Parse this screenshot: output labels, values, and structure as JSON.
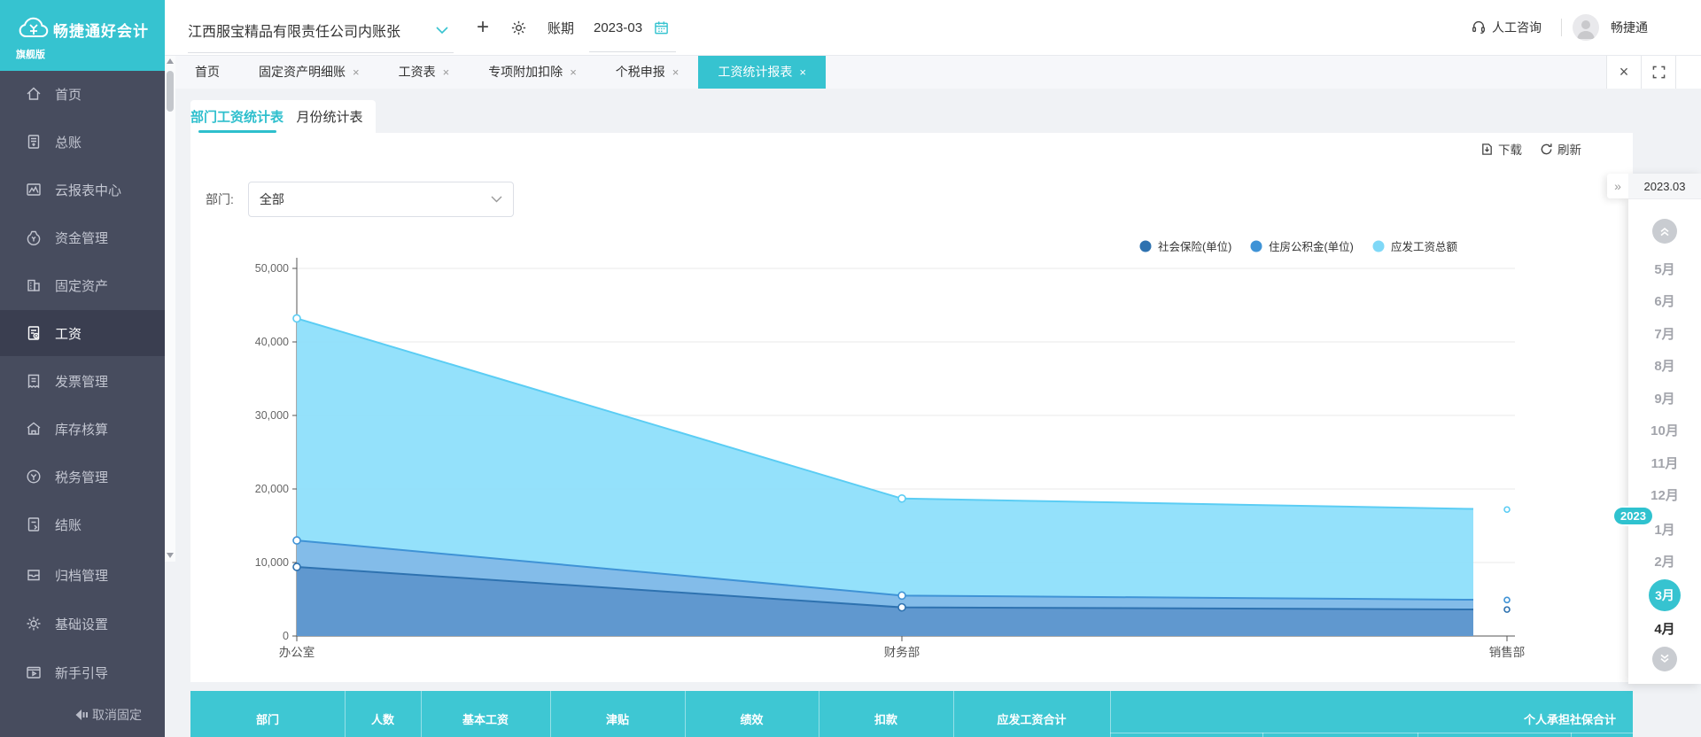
{
  "brand": {
    "product": "畅捷通好会计",
    "edition": "旗舰版"
  },
  "topbar": {
    "company": "江西服宝精品有限责任公司内账张",
    "add_label": "+",
    "period_label": "账期",
    "period_value": "2023-03",
    "support_label": "人工咨询",
    "username": "畅捷通"
  },
  "sidebar": {
    "items": [
      {
        "label": "首页",
        "icon": "home",
        "active": false
      },
      {
        "label": "总账",
        "icon": "ledger",
        "active": false
      },
      {
        "label": "云报表中心",
        "icon": "cloud-report",
        "active": false
      },
      {
        "label": "资金管理",
        "icon": "funds",
        "active": false
      },
      {
        "label": "固定资产",
        "icon": "fixed-assets",
        "active": false
      },
      {
        "label": "工资",
        "icon": "salary",
        "active": true
      },
      {
        "label": "发票管理",
        "icon": "invoice",
        "active": false
      },
      {
        "label": "库存核算",
        "icon": "inventory",
        "active": false
      },
      {
        "label": "税务管理",
        "icon": "tax",
        "active": false
      },
      {
        "label": "结账",
        "icon": "closing",
        "active": false
      },
      {
        "label": "归档管理",
        "icon": "archive",
        "active": false
      },
      {
        "label": "基础设置",
        "icon": "settings",
        "active": false
      },
      {
        "label": "新手引导",
        "icon": "guide",
        "active": false
      }
    ],
    "unpin_label": "取消固定"
  },
  "tabbar": {
    "tabs": [
      {
        "label": "首页",
        "closable": false,
        "active": false
      },
      {
        "label": "固定资产明细账",
        "closable": true,
        "active": false
      },
      {
        "label": "工资表",
        "closable": true,
        "active": false
      },
      {
        "label": "专项附加扣除",
        "closable": true,
        "active": false
      },
      {
        "label": "个税申报",
        "closable": true,
        "active": false
      },
      {
        "label": "工资统计报表",
        "closable": true,
        "active": true
      }
    ]
  },
  "main": {
    "subtabs": [
      {
        "label": "部门工资统计表",
        "active": true
      },
      {
        "label": "月份统计表",
        "active": false
      }
    ],
    "toolbar": {
      "download": "下载",
      "refresh": "刷新"
    },
    "filter": {
      "label": "部门:",
      "value": "全部"
    },
    "chart_data": {
      "type": "area",
      "categories": [
        "办公室",
        "财务部",
        "销售部"
      ],
      "series": [
        {
          "name": "社会保险(单位)",
          "line": "#2e72b0",
          "fill": "#5e96cd",
          "values": [
            9400,
            3900,
            3600
          ]
        },
        {
          "name": "住房公积金(单位)",
          "line": "#3f93d6",
          "fill": "#82b9e8",
          "values": [
            13000,
            5500,
            4900
          ]
        },
        {
          "name": "应发工资总额",
          "line": "#5bcdf4",
          "fill": "#8edffb",
          "values": [
            43200,
            18700,
            17200
          ]
        }
      ],
      "ylim": [
        0,
        50000
      ],
      "yticks": [
        0,
        10000,
        20000,
        30000,
        40000,
        50000
      ],
      "grid": true,
      "legend_position": "top-right"
    },
    "table": {
      "columns": [
        "部门",
        "人数",
        "基本工资",
        "津贴",
        "绩效",
        "扣款",
        "应发工资合计"
      ],
      "group_header": "个人承担社保合计"
    }
  },
  "date_panel": {
    "collapse": "»",
    "current": "2023.03",
    "items": [
      {
        "label": "5月",
        "type": "muted"
      },
      {
        "label": "6月",
        "type": "muted"
      },
      {
        "label": "7月",
        "type": "muted"
      },
      {
        "label": "8月",
        "type": "muted"
      },
      {
        "label": "9月",
        "type": "muted"
      },
      {
        "label": "10月",
        "type": "muted"
      },
      {
        "label": "11月",
        "type": "muted"
      },
      {
        "label": "12月",
        "type": "muted"
      },
      {
        "label": "2023",
        "type": "badge"
      },
      {
        "label": "1月",
        "type": "muted"
      },
      {
        "label": "2月",
        "type": "muted"
      },
      {
        "label": "3月",
        "type": "selected"
      },
      {
        "label": "4月",
        "type": "normal"
      }
    ]
  },
  "colors": {
    "brand": "#36c3d0",
    "table_header": "#3ec7d3",
    "sidebar_bg": "#474c5e",
    "sidebar_active": "#3a3e50"
  }
}
